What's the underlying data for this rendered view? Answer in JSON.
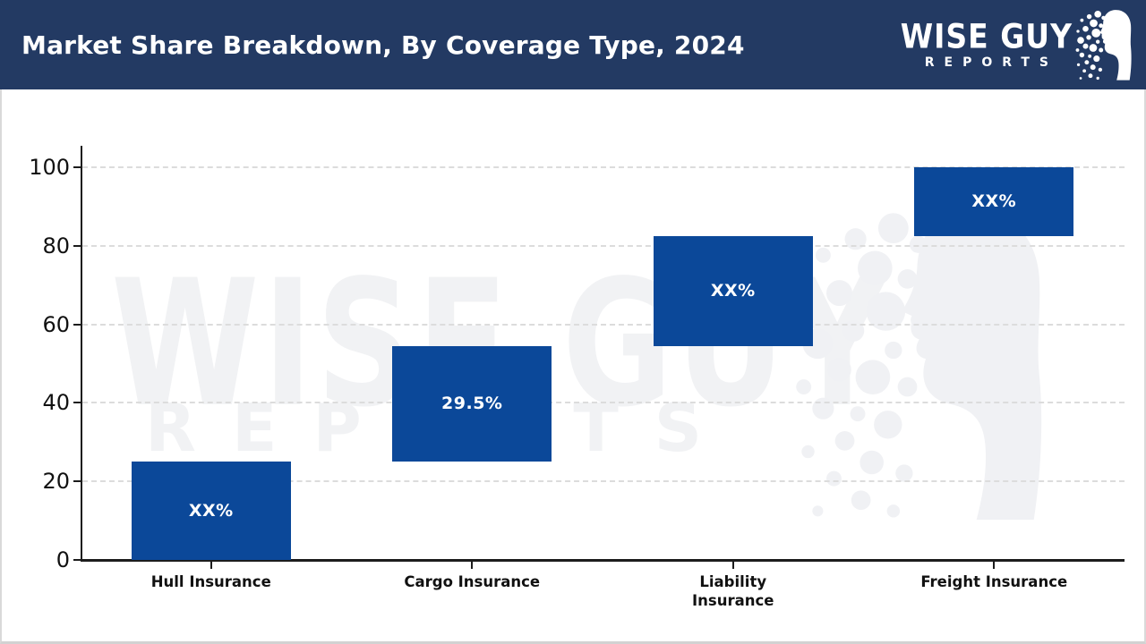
{
  "header": {
    "title": "Market Share Breakdown, By Coverage Type, 2024",
    "bg_color": "#233a63",
    "logo": {
      "line1": "WISE GUY",
      "line2": "REPORTS"
    }
  },
  "watermark": {
    "line1": "WISE GUY",
    "line2": "REPORTS"
  },
  "chart_data": {
    "type": "bar",
    "subtype": "floating-waterfall-segments",
    "title": "Market Share Breakdown, By Coverage Type, 2024",
    "xlabel": "",
    "ylabel": "",
    "categories": [
      "Hull Insurance",
      "Cargo Insurance",
      "Liability\nInsurance",
      "Freight Insurance"
    ],
    "bars": [
      {
        "category": "Hull Insurance",
        "start": 0,
        "end": 25,
        "height": 25,
        "label": "XX%"
      },
      {
        "category": "Cargo Insurance",
        "start": 25,
        "end": 54.5,
        "height": 29.5,
        "label": "29.5%"
      },
      {
        "category": "Liability Insurance",
        "start": 54.5,
        "end": 82.5,
        "height": 28,
        "label": "XX%"
      },
      {
        "category": "Freight Insurance",
        "start": 82.5,
        "end": 100,
        "height": 17.5,
        "label": "XX%"
      }
    ],
    "yticks": [
      0,
      20,
      40,
      60,
      80,
      100
    ],
    "ylim": [
      0,
      100
    ],
    "grid": "horizontal-dashed",
    "legend": "none",
    "bar_color": "#0b4899",
    "axis_color": "#1c1c1c",
    "grid_color": "#dcdcdc"
  }
}
